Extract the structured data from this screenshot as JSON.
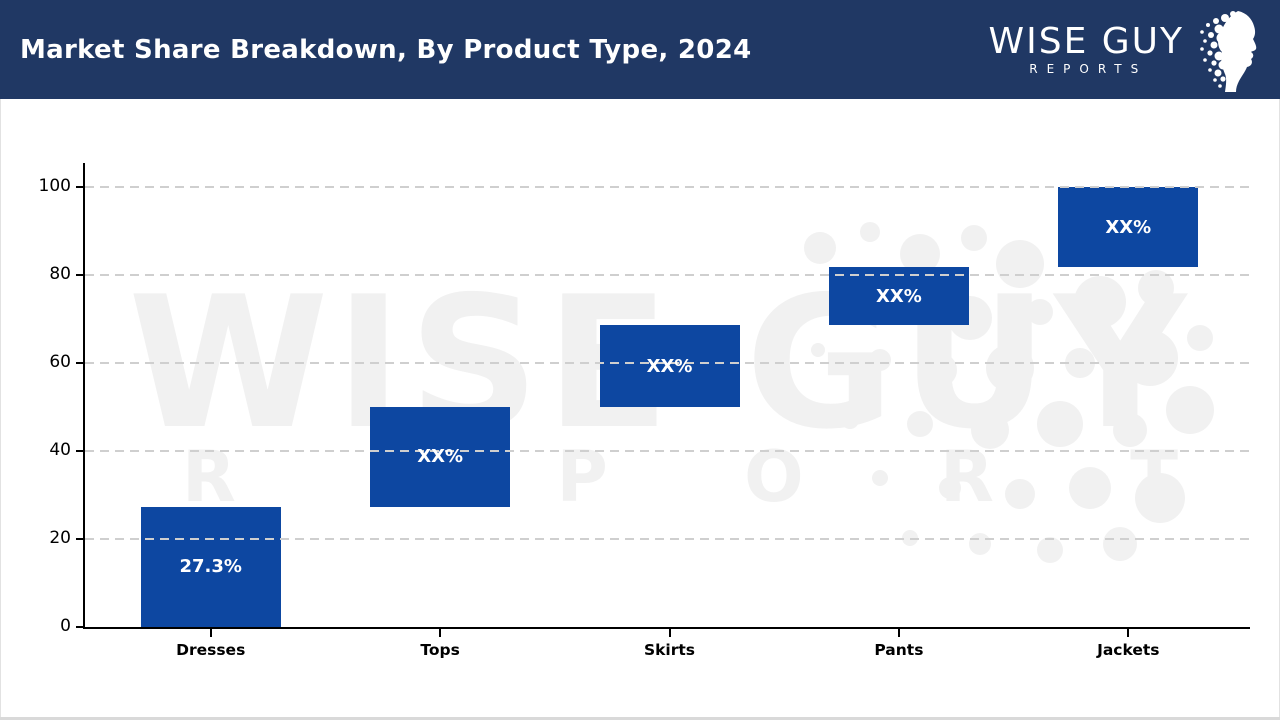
{
  "header": {
    "title": "Market Share Breakdown, By Product Type, 2024",
    "logo": {
      "wordmark": "WISE GUY",
      "subtext": "REPORTS"
    }
  },
  "watermark": {
    "line1": "WISE GUY",
    "line2": "R E P O R T S"
  },
  "colors": {
    "header_bg": "#203864",
    "bar": "#0d47a1",
    "bar_label": "#ffffff",
    "grid": "#cfcfcf",
    "axis": "#000000",
    "watermark": "#f1f1f1",
    "footer_line": "#d9d9d9"
  },
  "chart_data": {
    "type": "bar",
    "variant": "floating-waterfall",
    "title": "Market Share Breakdown, By Product Type, 2024",
    "categories": [
      "Dresses",
      "Tops",
      "Skirts",
      "Pants",
      "Jackets"
    ],
    "segments": [
      {
        "category": "Dresses",
        "start": 0,
        "end": 27.3,
        "label": "27.3%"
      },
      {
        "category": "Tops",
        "start": 27.3,
        "end": 50.0,
        "label": "XX%"
      },
      {
        "category": "Skirts",
        "start": 50.0,
        "end": 68.6,
        "label": "XX%"
      },
      {
        "category": "Pants",
        "start": 68.6,
        "end": 81.8,
        "label": "XX%"
      },
      {
        "category": "Jackets",
        "start": 81.8,
        "end": 100.0,
        "label": "XX%"
      }
    ],
    "xlabel": "",
    "ylabel": "",
    "yticks": [
      0,
      20,
      40,
      60,
      80,
      100
    ],
    "ylim": [
      0,
      105.5
    ],
    "grid": "dashed-horizontal",
    "grid_over_bars": true,
    "legend": false
  }
}
